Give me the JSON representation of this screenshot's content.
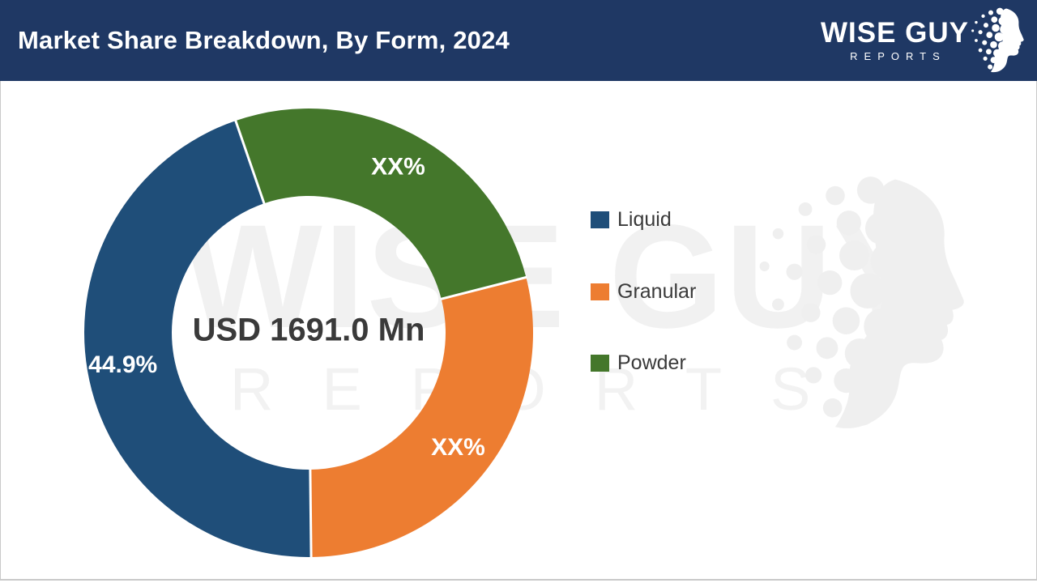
{
  "header": {
    "title": "Market Share Breakdown, By Form, 2024",
    "logo": {
      "line1": "WISE GUY",
      "line2": "REPORTS"
    }
  },
  "watermark": {
    "line1": "WISE GUY",
    "line2": "REPORTS"
  },
  "colors": {
    "brand_navy": "#1f3864",
    "liquid_blue": "#1f4e79",
    "granular_orange": "#ed7d31",
    "powder_green": "#44772b",
    "text_dark": "#3a3a3a",
    "watermark_gray": "#f1f1f1"
  },
  "chart_data": {
    "type": "pie",
    "subtype": "donut",
    "title": "Market Share Breakdown, By Form, 2024",
    "center_label": "USD 1691.0 Mn",
    "start_angle_deg": -19,
    "direction": "counterclockwise",
    "inner_radius_ratio": 0.61,
    "legend_position": "right",
    "series": [
      {
        "name": "Liquid",
        "value": 44.9,
        "label": "44.9%",
        "color": "#1f4e79"
      },
      {
        "name": "Granular",
        "value": 28.8,
        "label": "XX%",
        "color": "#ed7d31"
      },
      {
        "name": "Powder",
        "value": 26.3,
        "label": "XX%",
        "color": "#44772b"
      }
    ]
  }
}
